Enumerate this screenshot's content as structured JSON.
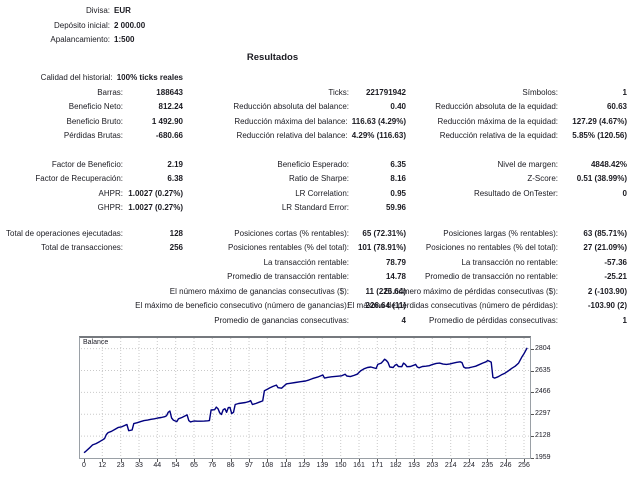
{
  "title": "Resultados",
  "header": {
    "rows": [
      {
        "label": "Divisa:",
        "value": "EUR"
      },
      {
        "label": "Depósito inicial:",
        "value": "2 000.00"
      },
      {
        "label": "Apalancamiento:",
        "value": "1:500"
      }
    ]
  },
  "stats": {
    "col1": [
      [
        [
          "Calidad del historial:",
          "100% ticks reales"
        ],
        [
          "Barras:",
          "188643"
        ],
        [
          "Beneficio Neto:",
          "812.24"
        ],
        [
          "Beneficio Bruto:",
          "1 492.90"
        ],
        [
          "Pérdidas Brutas:",
          "-680.66"
        ]
      ],
      [
        [
          "Factor de Beneficio:",
          "2.19"
        ],
        [
          "Factor de Recuperación:",
          "6.38"
        ],
        [
          "AHPR:",
          "1.0027 (0.27%)"
        ],
        [
          "GHPR:",
          "1.0027 (0.27%)"
        ]
      ],
      [
        [
          "Total de operaciones ejecutadas:",
          "128"
        ],
        [
          "Total de transacciones:",
          "256"
        ]
      ]
    ],
    "col2": [
      [
        null,
        [
          "Ticks:",
          "221791942"
        ],
        [
          "Reducción absoluta del balance:",
          "0.40"
        ],
        [
          "Reducción máxima del balance:",
          "116.63 (4.29%)"
        ],
        [
          "Reducción relativa del balance:",
          "4.29% (116.63)"
        ]
      ],
      [
        [
          "Beneficio Esperado:",
          "6.35"
        ],
        [
          "Ratio de Sharpe:",
          "8.16"
        ],
        [
          "LR Correlation:",
          "0.95"
        ],
        [
          "LR Standard Error:",
          "59.96"
        ]
      ],
      [
        [
          "Posiciones cortas (% rentables):",
          "65 (72.31%)"
        ],
        [
          "Posiciones rentables (% del total):",
          "101 (78.91%)"
        ],
        [
          "La transacción rentable:",
          "78.79"
        ],
        [
          "Promedio de transacción rentable:",
          "14.78"
        ],
        [
          "El número máximo de ganancias consecutivas ($):",
          "11 (226.64)"
        ],
        [
          "El máximo de beneficio consecutivo (número de ganancias):",
          "226.64 (11)"
        ],
        [
          "Promedio de ganancias consecutivas:",
          "4"
        ]
      ]
    ],
    "col3": [
      [
        null,
        [
          "Símbolos:",
          "1"
        ],
        [
          "Reducción absoluta de la equidad:",
          "60.63"
        ],
        [
          "Reducción máxima de la equidad:",
          "127.29 (4.67%)"
        ],
        [
          "Reducción relativa de la equidad:",
          "5.85% (120.56)"
        ]
      ],
      [
        [
          "Nivel de margen:",
          "4848.42%"
        ],
        [
          "Z-Score:",
          "0.51 (38.99%)"
        ],
        [
          "Resultado de OnTester:",
          "0"
        ],
        null
      ],
      [
        [
          "Posiciones largas (% rentables):",
          "63 (85.71%)"
        ],
        [
          "Posiciones no rentables (% del total):",
          "27 (21.09%)"
        ],
        [
          "La transacción no rentable:",
          "-57.36"
        ],
        [
          "Promedio de transacción no rentable:",
          "-25.21"
        ],
        [
          "El número máximo de pérdidas consecutivas ($):",
          "2 (-103.90)"
        ],
        [
          "El máximo de pérdidas consecutivas (número de pérdidas):",
          "-103.90 (2)"
        ],
        [
          "Promedio de pérdidas consecutivas:",
          "1"
        ]
      ]
    ]
  },
  "chart_data": {
    "type": "line",
    "title": "Balance",
    "xlabel": "",
    "ylabel": "",
    "grid": true,
    "legend_position": "top-left-inside",
    "line_color": "#00007F",
    "grid_color": "#c9c9c9",
    "xlim": [
      0,
      258
    ],
    "ylim": [
      1959,
      2896
    ],
    "x_ticks": [
      0,
      12,
      23,
      33,
      44,
      54,
      65,
      76,
      86,
      97,
      108,
      118,
      129,
      139,
      150,
      161,
      171,
      182,
      193,
      203,
      214,
      224,
      235,
      246,
      256
    ],
    "y_ticks": [
      1959,
      2128,
      2297,
      2466,
      2635,
      2804
    ],
    "series": [
      {
        "name": "Balance",
        "points": [
          [
            0,
            2000
          ],
          [
            1,
            2010
          ],
          [
            3,
            2035
          ],
          [
            5,
            2060
          ],
          [
            7,
            2070
          ],
          [
            9,
            2085
          ],
          [
            11,
            2100
          ],
          [
            12,
            2110
          ],
          [
            13,
            2140
          ],
          [
            14,
            2155
          ],
          [
            16,
            2165
          ],
          [
            18,
            2180
          ],
          [
            20,
            2195
          ],
          [
            22,
            2200
          ],
          [
            24,
            2212
          ],
          [
            25,
            2218
          ],
          [
            26,
            2170
          ],
          [
            28,
            2175
          ],
          [
            29,
            2225
          ],
          [
            31,
            2232
          ],
          [
            33,
            2240
          ],
          [
            35,
            2248
          ],
          [
            37,
            2252
          ],
          [
            39,
            2258
          ],
          [
            41,
            2262
          ],
          [
            43,
            2268
          ],
          [
            45,
            2272
          ],
          [
            47,
            2278
          ],
          [
            48,
            2285
          ],
          [
            49,
            2312
          ],
          [
            50,
            2322
          ],
          [
            51,
            2268
          ],
          [
            52,
            2252
          ],
          [
            54,
            2240
          ],
          [
            55,
            2262
          ],
          [
            57,
            2272
          ],
          [
            59,
            2285
          ],
          [
            60,
            2292
          ],
          [
            61,
            2248
          ],
          [
            62,
            2238
          ],
          [
            64,
            2245
          ],
          [
            66,
            2243
          ],
          [
            68,
            2243
          ],
          [
            70,
            2244
          ],
          [
            72,
            2246
          ],
          [
            73,
            2248
          ],
          [
            74,
            2330
          ],
          [
            76,
            2332
          ],
          [
            77,
            2352
          ],
          [
            78,
            2340
          ],
          [
            79,
            2308
          ],
          [
            80,
            2295
          ],
          [
            81,
            2332
          ],
          [
            82,
            2340
          ],
          [
            83,
            2312
          ],
          [
            84,
            2348
          ],
          [
            85,
            2350
          ],
          [
            86,
            2302
          ],
          [
            87,
            2312
          ],
          [
            88,
            2372
          ],
          [
            90,
            2380
          ],
          [
            92,
            2384
          ],
          [
            94,
            2388
          ],
          [
            96,
            2395
          ],
          [
            97,
            2402
          ],
          [
            98,
            2372
          ],
          [
            100,
            2380
          ],
          [
            102,
            2390
          ],
          [
            104,
            2400
          ],
          [
            105,
            2478
          ],
          [
            107,
            2492
          ],
          [
            108,
            2500
          ],
          [
            110,
            2512
          ],
          [
            112,
            2522
          ],
          [
            113,
            2502
          ],
          [
            115,
            2498
          ],
          [
            117,
            2522
          ],
          [
            118,
            2532
          ],
          [
            120,
            2536
          ],
          [
            123,
            2542
          ],
          [
            126,
            2548
          ],
          [
            129,
            2554
          ],
          [
            131,
            2562
          ],
          [
            133,
            2572
          ],
          [
            136,
            2584
          ],
          [
            139,
            2600
          ],
          [
            140,
            2576
          ],
          [
            142,
            2582
          ],
          [
            144,
            2586
          ],
          [
            147,
            2590
          ],
          [
            150,
            2594
          ],
          [
            152,
            2606
          ],
          [
            153,
            2592
          ],
          [
            155,
            2588
          ],
          [
            157,
            2596
          ],
          [
            159,
            2606
          ],
          [
            161,
            2632
          ],
          [
            163,
            2648
          ],
          [
            165,
            2658
          ],
          [
            167,
            2662
          ],
          [
            169,
            2654
          ],
          [
            170,
            2650
          ],
          [
            171,
            2682
          ],
          [
            173,
            2692
          ],
          [
            174,
            2706
          ],
          [
            175,
            2722
          ],
          [
            176,
            2712
          ],
          [
            177,
            2696
          ],
          [
            178,
            2662
          ],
          [
            180,
            2658
          ],
          [
            181,
            2676
          ],
          [
            182,
            2682
          ],
          [
            183,
            2666
          ],
          [
            185,
            2664
          ],
          [
            186,
            2692
          ],
          [
            187,
            2682
          ],
          [
            188,
            2664
          ],
          [
            190,
            2666
          ],
          [
            192,
            2676
          ],
          [
            193,
            2682
          ],
          [
            194,
            2662
          ],
          [
            195,
            2656
          ],
          [
            197,
            2666
          ],
          [
            199,
            2668
          ],
          [
            201,
            2672
          ],
          [
            203,
            2682
          ],
          [
            205,
            2690
          ],
          [
            207,
            2692
          ],
          [
            209,
            2684
          ],
          [
            211,
            2682
          ],
          [
            213,
            2686
          ],
          [
            215,
            2692
          ],
          [
            217,
            2698
          ],
          [
            219,
            2702
          ],
          [
            220,
            2696
          ],
          [
            221,
            2662
          ],
          [
            222,
            2654
          ],
          [
            224,
            2656
          ],
          [
            226,
            2662
          ],
          [
            228,
            2668
          ],
          [
            230,
            2680
          ],
          [
            232,
            2692
          ],
          [
            234,
            2702
          ],
          [
            235,
            2712
          ],
          [
            236,
            2706
          ],
          [
            237,
            2700
          ],
          [
            238,
            2582
          ],
          [
            239,
            2576
          ],
          [
            241,
            2586
          ],
          [
            243,
            2602
          ],
          [
            245,
            2614
          ],
          [
            247,
            2632
          ],
          [
            249,
            2652
          ],
          [
            251,
            2668
          ],
          [
            253,
            2692
          ],
          [
            255,
            2742
          ],
          [
            256,
            2762
          ],
          [
            257,
            2786
          ],
          [
            258,
            2810
          ]
        ]
      }
    ]
  }
}
